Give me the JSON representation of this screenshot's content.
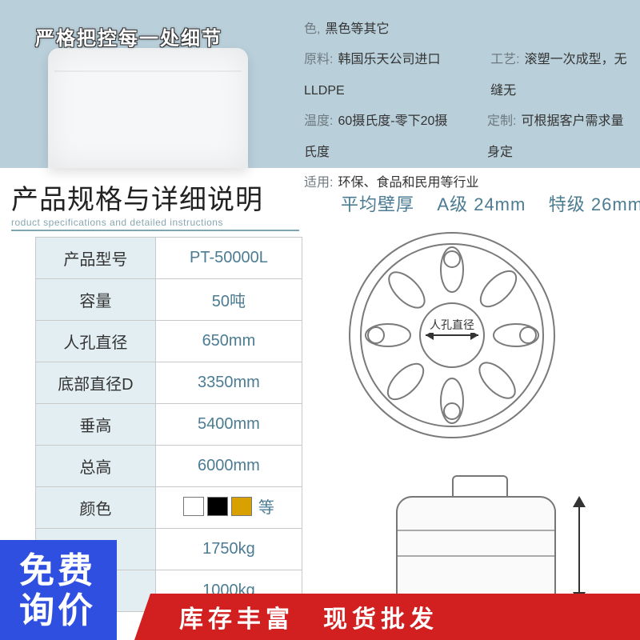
{
  "tagline": "严格把控每一处细节",
  "details": {
    "colorNoteLabel": "色,",
    "colorNote": "黑色等其它",
    "material": {
      "label": "原料:",
      "value": "韩国乐天公司进口LLDPE"
    },
    "process": {
      "label": "工艺:",
      "value": "滚塑一次成型，无缝无"
    },
    "temp": {
      "label": "温度:",
      "value": "60摄氏度-零下20摄氏度"
    },
    "custom": {
      "label": "定制:",
      "value": "可根据客户需求量身定"
    },
    "apply": {
      "label": "适用:",
      "value": "环保、食品和民用等行业"
    }
  },
  "specHeading": {
    "title": "产品规格与详细说明",
    "subtitle": "roduct specifications and detailed instructions"
  },
  "specTable": {
    "rows": [
      {
        "k": "产品型号",
        "v": "PT-50000L"
      },
      {
        "k": "容量",
        "v": "50吨"
      },
      {
        "k": "人孔直径",
        "v": "650mm"
      },
      {
        "k": "底部直径D",
        "v": "3350mm"
      },
      {
        "k": "垂高",
        "v": "5400mm"
      },
      {
        "k": "总高",
        "v": "6000mm"
      }
    ],
    "colorRow": {
      "k": "颜色",
      "suffix": "等"
    },
    "swatches": [
      "#ffffff",
      "#000000",
      "#d8a000"
    ],
    "weight1": {
      "k": "",
      "v": "1750kg"
    },
    "weight2": {
      "k": "",
      "v": "1000kg"
    }
  },
  "diagram": {
    "thicknessLine": {
      "prefix": "平均壁厚",
      "a": "A级  24mm",
      "s": "特级  26mm"
    },
    "manholeLabel": "人孔直径",
    "topview": {
      "outerR": 130,
      "stroke": "#7a7a7a",
      "strokeW": 2
    }
  },
  "badges": {
    "bl_line1": "免费",
    "bl_line2": "询价",
    "br": "库存丰富　现货批发"
  }
}
